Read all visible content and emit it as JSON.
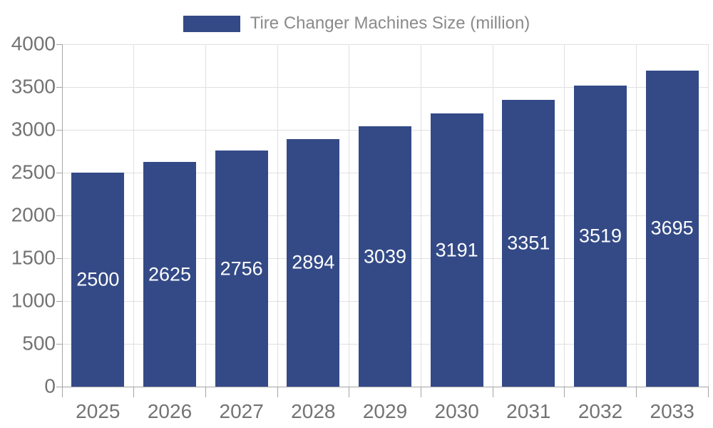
{
  "chart_data": {
    "type": "bar",
    "title": "Tire Changer Machines Size (million)",
    "legend_label": "Tire Changer Machines Size (million)",
    "categories": [
      "2025",
      "2026",
      "2027",
      "2028",
      "2029",
      "2030",
      "2031",
      "2032",
      "2033"
    ],
    "values": [
      2500,
      2625,
      2756,
      2894,
      3039,
      3191,
      3351,
      3519,
      3695
    ],
    "xlabel": "",
    "ylabel": "",
    "ylim": [
      0,
      4000
    ],
    "yticks": [
      0,
      500,
      1000,
      1500,
      2000,
      2500,
      3000,
      3500,
      4000
    ],
    "grid": true,
    "legend_position": "top-center",
    "bar_color": "#344a87",
    "bar_label_color": "#ffffff",
    "axis_label_color": "#737373",
    "legend_text_color": "#8a8a8a",
    "grid_color": "#e0e0e0",
    "axis_line_color": "#a5a5a5"
  }
}
